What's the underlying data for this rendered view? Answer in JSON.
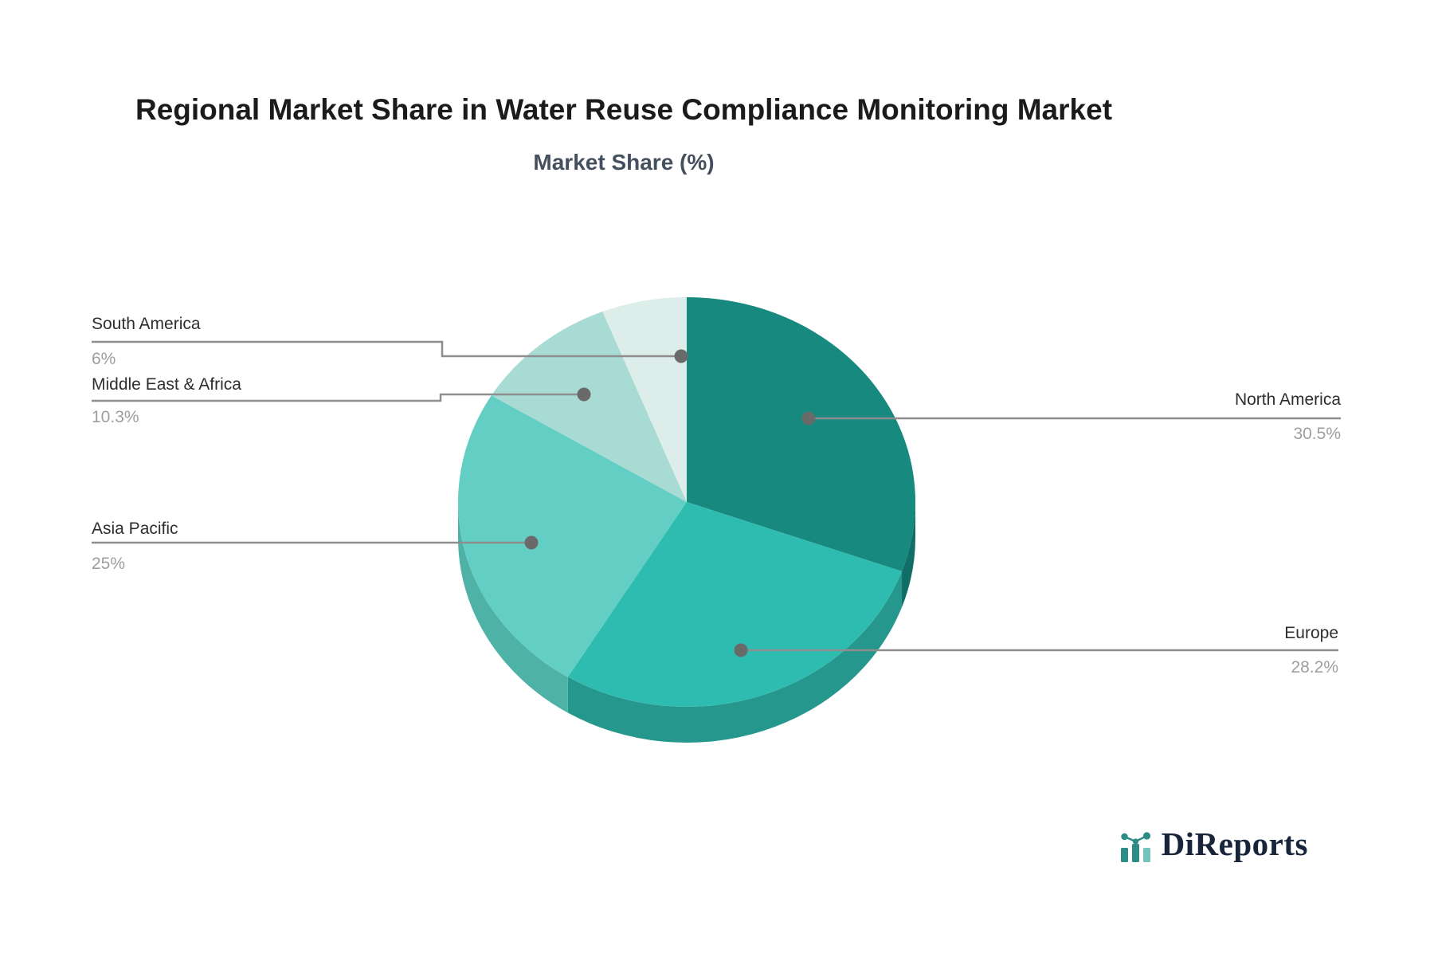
{
  "header": {
    "title": "Regional Market Share in Water Reuse Compliance Monitoring Market",
    "subtitle": "Market Share (%)"
  },
  "chart_data": {
    "type": "pie",
    "title": "Regional Market Share in Water Reuse Compliance Monitoring Market",
    "subtitle": "Market Share (%)",
    "unit": "%",
    "effect": "3d",
    "start_angle": "12 o'clock",
    "direction": "clockwise",
    "categories": [
      "North America",
      "Europe",
      "Asia Pacific",
      "Middle East & Africa",
      "South America"
    ],
    "values": [
      30.5,
      28.2,
      25,
      10.3,
      6
    ],
    "value_labels": [
      "30.5%",
      "28.2%",
      "25%",
      "10.3%",
      "6%"
    ],
    "colors": [
      "#17897F",
      "#2EBCB1",
      "#63CEC3",
      "#A7DBD4",
      "#DDEDEA"
    ],
    "side_colors": [
      "#116E66",
      "#26978D",
      "#4FB2A7",
      "#8FC9C2",
      "#C9E3DF"
    ],
    "leader_line_color": "#8E8E8E",
    "dot_color": "#6A6A6A",
    "label_name_color": "#2E2E2E",
    "label_value_color": "#9E9E9E",
    "legend": "none"
  },
  "logo": {
    "icon": "bar-chart-trend-icon",
    "text": "DiReports",
    "text_color": "#18243A",
    "mark_dark_color": "#2E8C86",
    "mark_light_color": "#74C3BD"
  }
}
